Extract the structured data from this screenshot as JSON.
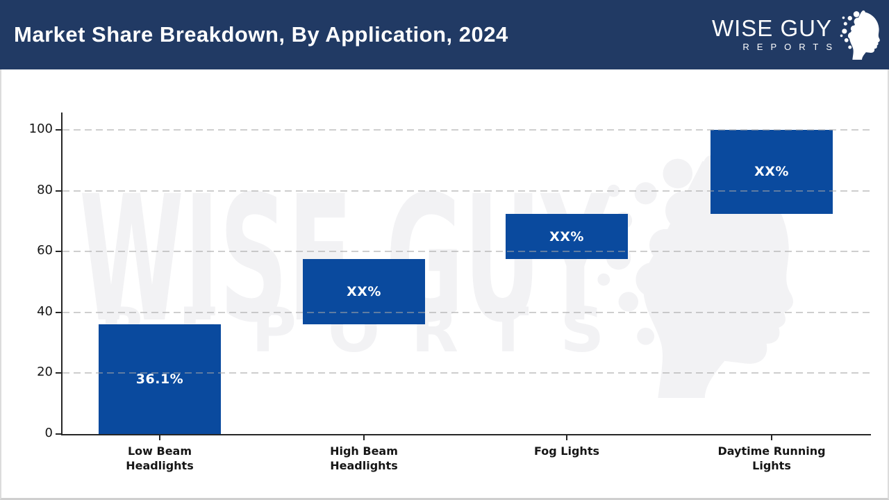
{
  "header": {
    "title": "Market Share Breakdown, By Application, 2024",
    "logo": {
      "line1": "WISE GUY",
      "line2": "REPORTS"
    }
  },
  "watermark": {
    "line1": "WISE GUY",
    "line2": "REPORTS"
  },
  "chart_data": {
    "type": "bar",
    "subtype": "waterfall",
    "title": "Market Share Breakdown, By Application, 2024",
    "categories": [
      "Low Beam Headlights",
      "High Beam Headlights",
      "Fog Lights",
      "Daytime Running Lights"
    ],
    "category_lines": [
      [
        "Low Beam",
        "Headlights"
      ],
      [
        "High Beam",
        "Headlights"
      ],
      [
        "Fog Lights"
      ],
      [
        "Daytime Running",
        "Lights"
      ]
    ],
    "segments": [
      {
        "category": "Low Beam Headlights",
        "start": 0,
        "end": 36.1,
        "label": "36.1%"
      },
      {
        "category": "High Beam Headlights",
        "start": 36.1,
        "end": 57.5,
        "label": "XX%"
      },
      {
        "category": "Fog Lights",
        "start": 57.5,
        "end": 72.4,
        "label": "XX%"
      },
      {
        "category": "Daytime Running Lights",
        "start": 72.4,
        "end": 100,
        "label": "XX%"
      }
    ],
    "y_ticks": [
      0,
      20,
      40,
      60,
      80,
      100
    ],
    "ylim": [
      0,
      100
    ],
    "xlabel": "",
    "ylabel": "",
    "legend": "none",
    "grid": "horizontal-dashed",
    "colors": {
      "bar": "#0a4a9e",
      "header_bg": "#213a64",
      "axis": "#262626",
      "gridline": "#bdbdbd",
      "watermark": "#f2f2f4",
      "bar_label_text": "#ffffff"
    }
  }
}
